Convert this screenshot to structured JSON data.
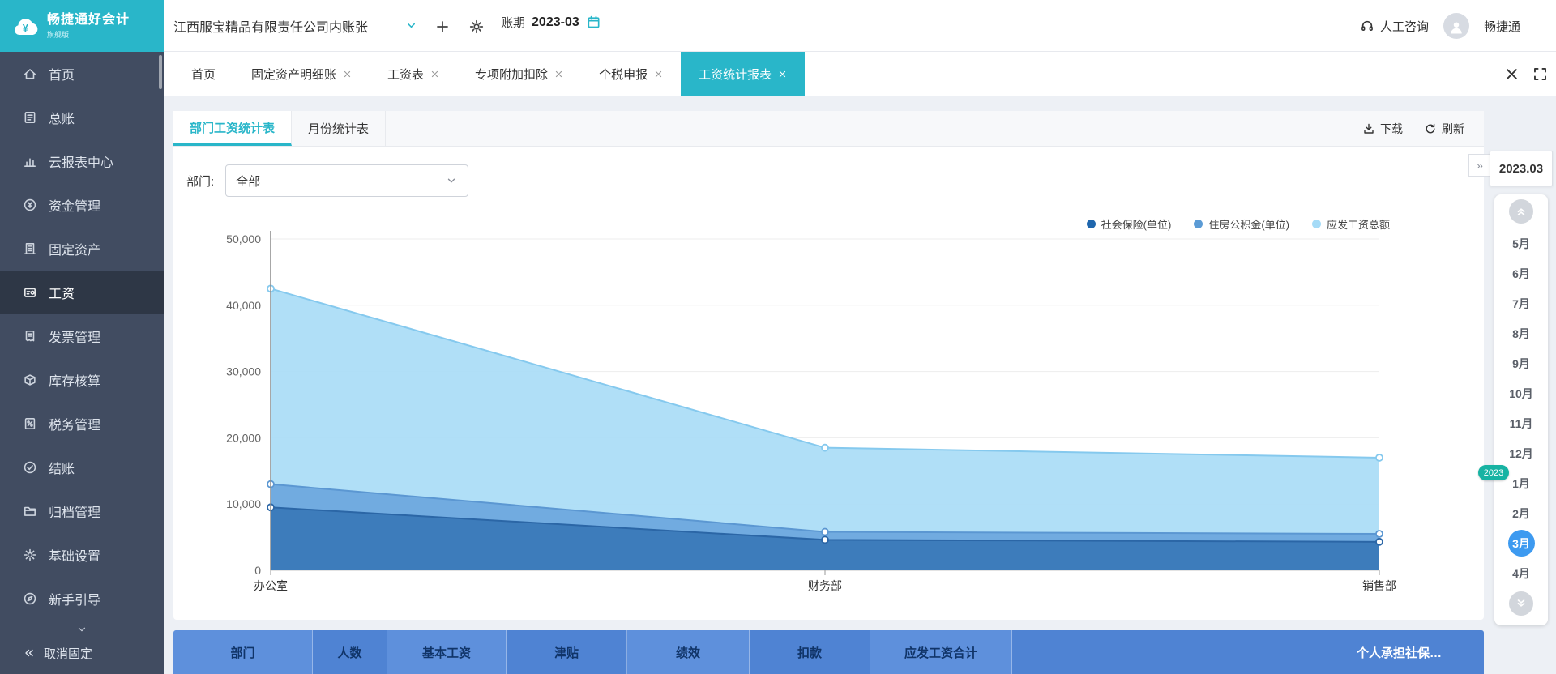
{
  "colors": {
    "brand_teal": "#29b6c9",
    "sidebar_bg": "#414c61",
    "selected_month_blue": "#3d9af0",
    "table_header_blue": "#4f83d3",
    "year_badge_teal": "#17b3a3"
  },
  "topbar": {
    "logo_title": "畅捷通好会计",
    "logo_badge": "旗舰版",
    "company": "江西服宝精品有限责任公司内账张",
    "period_label": "账期",
    "period_value": "2023-03",
    "support_label": "人工咨询",
    "username": "畅捷通"
  },
  "sidebar": {
    "items": [
      {
        "label": "首页",
        "icon": "home-icon"
      },
      {
        "label": "总账",
        "icon": "ledger-icon"
      },
      {
        "label": "云报表中心",
        "icon": "cloud-report-icon"
      },
      {
        "label": "资金管理",
        "icon": "funds-icon"
      },
      {
        "label": "固定资产",
        "icon": "fixed-assets-icon"
      },
      {
        "label": "工资",
        "icon": "salary-icon",
        "active": true
      },
      {
        "label": "发票管理",
        "icon": "invoice-icon"
      },
      {
        "label": "库存核算",
        "icon": "inventory-icon"
      },
      {
        "label": "税务管理",
        "icon": "tax-icon"
      },
      {
        "label": "结账",
        "icon": "closing-icon"
      },
      {
        "label": "归档管理",
        "icon": "archive-icon"
      },
      {
        "label": "基础设置",
        "icon": "settings-icon"
      },
      {
        "label": "新手引导",
        "icon": "guide-icon"
      }
    ],
    "collapse_label": "取消固定"
  },
  "tabbar": {
    "tabs": [
      {
        "label": "首页",
        "closable": false,
        "active": false
      },
      {
        "label": "固定资产明细账",
        "closable": true,
        "active": false
      },
      {
        "label": "工资表",
        "closable": true,
        "active": false
      },
      {
        "label": "专项附加扣除",
        "closable": true,
        "active": false
      },
      {
        "label": "个税申报",
        "closable": true,
        "active": false
      },
      {
        "label": "工资统计报表",
        "closable": true,
        "active": true
      }
    ]
  },
  "panel": {
    "subtabs": [
      {
        "label": "部门工资统计表",
        "active": true
      },
      {
        "label": "月份统计表",
        "active": false
      }
    ],
    "download_label": "下载",
    "refresh_label": "刷新",
    "filter_label": "部门:",
    "filter_value": "全部"
  },
  "chart_data": {
    "type": "area",
    "title": "",
    "categories": [
      "办公室",
      "财务部",
      "销售部"
    ],
    "series": [
      {
        "name": "社会保险(单位)",
        "color": "#1f66ad",
        "fill": "#3877b7",
        "stroke": "#2b66a6",
        "values": [
          9500,
          4600,
          4300
        ]
      },
      {
        "name": "住房公积金(单位)",
        "color": "#5b9bd5",
        "fill": "#6ba6dd",
        "stroke": "#5b97d2",
        "values": [
          13000,
          5800,
          5500
        ]
      },
      {
        "name": "应发工资总额",
        "color": "#a5dbf7",
        "fill": "#a9dcf6",
        "stroke": "#85c9ee",
        "values": [
          42500,
          18500,
          17000
        ]
      }
    ],
    "ylim": [
      0,
      50000
    ],
    "yticks": [
      {
        "v": 0,
        "label": "0"
      },
      {
        "v": 10000,
        "label": "10,000"
      },
      {
        "v": 20000,
        "label": "20,000"
      },
      {
        "v": 30000,
        "label": "30,000"
      },
      {
        "v": 40000,
        "label": "40,000"
      },
      {
        "v": 50000,
        "label": "50,000"
      }
    ],
    "legend_position": "top-right",
    "grid": true
  },
  "month_panel": {
    "header": "2023.03",
    "year_badge": "2023",
    "months": [
      "5月",
      "6月",
      "7月",
      "8月",
      "9月",
      "10月",
      "11月",
      "12月",
      "1月",
      "2月",
      "3月",
      "4月"
    ],
    "selected_month": "3月"
  },
  "table": {
    "headers": [
      "部门",
      "人数",
      "基本工资",
      "津贴",
      "绩效",
      "扣款",
      "应发工资合计",
      "个人承担社保…"
    ]
  }
}
